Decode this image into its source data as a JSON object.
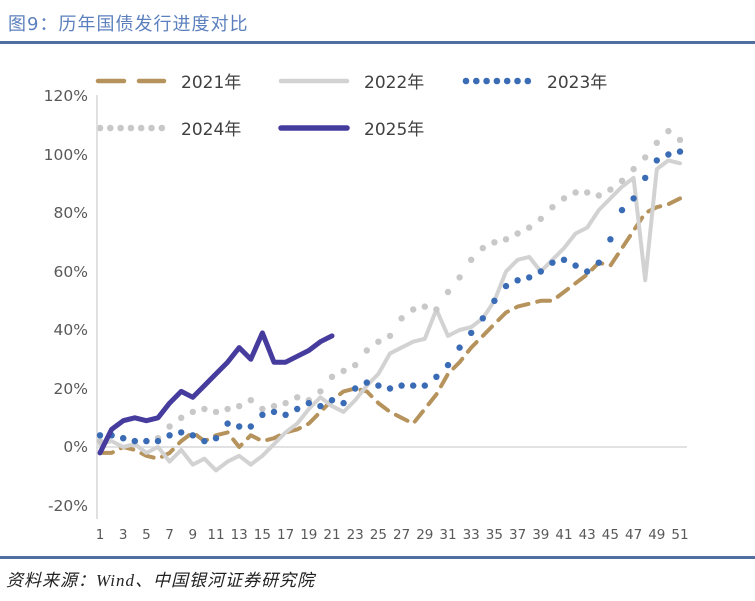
{
  "figure": {
    "title": "图9：历年国债发行进度对比",
    "source": "资料来源：Wind、中国银河证券研究院",
    "accent_rule_color": "#4E6F9F",
    "title_color": "#5C80BE"
  },
  "chart_data": {
    "type": "line",
    "title": "历年国债发行进度对比",
    "unit": "%",
    "legend_position": "top-left",
    "grid": "zero-line-only",
    "xlim": [
      1,
      51
    ],
    "ylim": [
      -20,
      120
    ],
    "x_ticks": [
      1,
      3,
      5,
      7,
      9,
      11,
      13,
      15,
      17,
      19,
      21,
      23,
      25,
      27,
      29,
      31,
      33,
      35,
      37,
      39,
      41,
      43,
      45,
      47,
      49,
      51
    ],
    "y_ticks": [
      "120%",
      "100%",
      "80%",
      "60%",
      "40%",
      "20%",
      "0%",
      "-20%"
    ],
    "x_start_week": 1,
    "series": [
      {
        "name": "2021年",
        "color": "#B6935C",
        "style": "dashed",
        "values": [
          -2,
          -2,
          0,
          -1,
          -3,
          -4,
          -2,
          2,
          5,
          2,
          4,
          5,
          0,
          4,
          2,
          3,
          5,
          6,
          8,
          12,
          16,
          19,
          20,
          19,
          15,
          12,
          10,
          8,
          13,
          18,
          25,
          29,
          34,
          38,
          42,
          46,
          48,
          49,
          50,
          50,
          53,
          56,
          59,
          63,
          62,
          68,
          74,
          80,
          82,
          83,
          85
        ]
      },
      {
        "name": "2022年",
        "color": "#D2D2D2",
        "style": "solid",
        "values": [
          1,
          2,
          0,
          1,
          -2,
          0,
          -5,
          -1,
          -6,
          -4,
          -8,
          -5,
          -3,
          -6,
          -3,
          1,
          5,
          8,
          13,
          17,
          14,
          12,
          16,
          21,
          25,
          32,
          34,
          36,
          37,
          47,
          38,
          40,
          41,
          44,
          50,
          60,
          64,
          65,
          60,
          64,
          68,
          73,
          75,
          81,
          85,
          89,
          92,
          57,
          95,
          98,
          97
        ]
      },
      {
        "name": "2023年",
        "color": "#3A6BB5",
        "style": "dotted",
        "values": [
          4,
          4,
          3,
          2,
          2,
          2,
          4,
          5,
          4,
          2,
          3,
          8,
          7,
          7,
          11,
          12,
          11,
          13,
          15,
          14,
          16,
          15,
          20,
          22,
          21,
          20,
          21,
          21,
          21,
          24,
          28,
          34,
          39,
          44,
          50,
          55,
          57,
          58,
          60,
          63,
          64,
          62,
          60,
          63,
          71,
          81,
          85,
          92,
          98,
          100,
          101
        ]
      },
      {
        "name": "2024年",
        "color": "#C8C8C8",
        "style": "dotted",
        "values": [
          2,
          4,
          3,
          2,
          2,
          3,
          7,
          10,
          12,
          13,
          12,
          13,
          14,
          16,
          13,
          14,
          15,
          17,
          16,
          19,
          24,
          26,
          28,
          33,
          36,
          38,
          44,
          47,
          48,
          47,
          53,
          58,
          64,
          68,
          70,
          71,
          73,
          75,
          78,
          82,
          85,
          87,
          87,
          86,
          88,
          91,
          95,
          99,
          104,
          108,
          105
        ]
      },
      {
        "name": "2025年",
        "color": "#463C9D",
        "style": "solid-bold",
        "values": [
          -2,
          6,
          9,
          10,
          9,
          10,
          15,
          19,
          17,
          21,
          25,
          29,
          34,
          30,
          39,
          29,
          29,
          31,
          33,
          36,
          38
        ]
      }
    ]
  }
}
